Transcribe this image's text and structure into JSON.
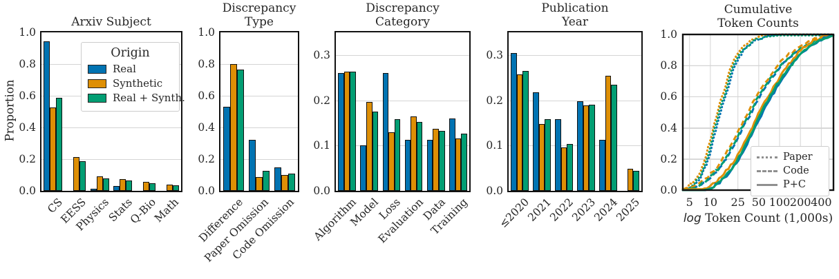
{
  "colors": {
    "series": [
      "#0173b2",
      "#de8f05",
      "#029e73"
    ],
    "edge": "#111111",
    "grid": "#d4d4d4",
    "text": "#262626",
    "legend_line": "#8f8f8f"
  },
  "legend": {
    "title": "Origin",
    "entries": [
      "Real",
      "Synthetic",
      "Real + Synth."
    ]
  },
  "chart_data": [
    {
      "type": "bar",
      "slug": "arxiv-subject",
      "title": "Arxiv Subject",
      "ylabel": "Proportion",
      "ylim": [
        0,
        1.0
      ],
      "yticks": [
        "0.0",
        "0.2",
        "0.4",
        "0.6",
        "0.8",
        "1.0"
      ],
      "categories": [
        "CS",
        "EESS",
        "Physics",
        "Stats",
        "Q-Bio",
        "Math"
      ],
      "series": [
        {
          "name": "Real",
          "values": [
            0.945,
            0,
            0.012,
            0.03,
            0,
            0
          ]
        },
        {
          "name": "Synthetic",
          "values": [
            0.525,
            0.212,
            0.09,
            0.075,
            0.055,
            0.04
          ]
        },
        {
          "name": "Real + Synth.",
          "values": [
            0.585,
            0.188,
            0.08,
            0.066,
            0.049,
            0.035
          ]
        }
      ]
    },
    {
      "type": "bar",
      "slug": "discrepancy-type",
      "title": "Discrepancy\nType",
      "ylim": [
        0,
        1.0
      ],
      "yticks": [
        "0.0",
        "0.2",
        "0.4",
        "0.6",
        "0.8",
        "1.0"
      ],
      "categories": [
        "Difference",
        "Paper Omission",
        "Code Omission"
      ],
      "series": [
        {
          "name": "Real",
          "values": [
            0.53,
            0.32,
            0.15
          ]
        },
        {
          "name": "Synthetic",
          "values": [
            0.8,
            0.085,
            0.1
          ]
        },
        {
          "name": "Real + Synth.",
          "values": [
            0.765,
            0.125,
            0.11
          ]
        }
      ]
    },
    {
      "type": "bar",
      "slug": "discrepancy-category",
      "title": "Discrepancy\nCategory",
      "ylim": [
        0,
        0.35
      ],
      "yticks": [
        "0.0",
        "0.1",
        "0.2",
        "0.3"
      ],
      "categories": [
        "Algorithm",
        "Model",
        "Loss",
        "Evaluation",
        "Data",
        "Training"
      ],
      "series": [
        {
          "name": "Real",
          "values": [
            0.26,
            0.1,
            0.26,
            0.113,
            0.113,
            0.16
          ]
        },
        {
          "name": "Synthetic",
          "values": [
            0.263,
            0.197,
            0.13,
            0.165,
            0.137,
            0.115
          ]
        },
        {
          "name": "Real + Synth.",
          "values": [
            0.263,
            0.175,
            0.158,
            0.152,
            0.132,
            0.127
          ]
        }
      ]
    },
    {
      "type": "bar",
      "slug": "publication-year",
      "title": "Publication\nYear",
      "ylim": [
        0,
        0.35
      ],
      "yticks": [
        "0.0",
        "0.1",
        "0.2",
        "0.3"
      ],
      "categories": [
        "≤2020",
        "2021",
        "2022",
        "2023",
        "2024",
        "2025"
      ],
      "series": [
        {
          "name": "Real",
          "values": [
            0.305,
            0.218,
            0.158,
            0.198,
            0.112,
            0
          ]
        },
        {
          "name": "Synthetic",
          "values": [
            0.257,
            0.148,
            0.096,
            0.189,
            0.254,
            0.049
          ]
        },
        {
          "name": "Real + Synth.",
          "values": [
            0.265,
            0.158,
            0.104,
            0.19,
            0.235,
            0.044
          ]
        }
      ]
    },
    {
      "type": "line",
      "slug": "cumulative-token-counts",
      "title": "Cumulative\nToken Counts",
      "xlabel_italic": "log",
      "xlabel_rest": " Token Count (1,000s)",
      "xscale": "log",
      "xlim": [
        4,
        600
      ],
      "ylim": [
        0,
        1.0
      ],
      "xticks": [
        "5",
        "10",
        "25",
        "50",
        "100",
        "200",
        "400"
      ],
      "yticks": [
        "0.0",
        "0.2",
        "0.4",
        "0.6",
        "0.8",
        "1.0"
      ],
      "legend": {
        "entries": [
          {
            "name": "Paper",
            "style": "dotted"
          },
          {
            "name": "Code",
            "style": "dashed"
          },
          {
            "name": "P+C",
            "style": "solid"
          }
        ]
      },
      "series": [
        {
          "name": "Paper",
          "style": "dotted",
          "x": [
            4,
            5,
            6,
            7,
            8,
            9,
            10,
            12,
            14,
            17,
            20,
            25,
            30,
            40,
            60,
            100,
            600
          ],
          "y": [
            0,
            0.02,
            0.05,
            0.09,
            0.15,
            0.21,
            0.29,
            0.43,
            0.54,
            0.65,
            0.77,
            0.86,
            0.91,
            0.96,
            0.99,
            1.0,
            1.0
          ]
        },
        {
          "name": "Code",
          "style": "dashed",
          "x": [
            4,
            5,
            7,
            9,
            11,
            14,
            17,
            21,
            26,
            32,
            40,
            50,
            63,
            80,
            100,
            130,
            170,
            220,
            300,
            420,
            600
          ],
          "y": [
            0,
            0.01,
            0.035,
            0.07,
            0.11,
            0.16,
            0.22,
            0.29,
            0.37,
            0.45,
            0.53,
            0.61,
            0.68,
            0.74,
            0.8,
            0.85,
            0.89,
            0.925,
            0.955,
            0.98,
            1.0
          ]
        },
        {
          "name": "P+C",
          "style": "solid",
          "x": [
            4,
            8,
            10,
            12,
            15,
            19,
            24,
            30,
            37,
            45,
            55,
            68,
            85,
            105,
            130,
            165,
            210,
            270,
            350,
            450,
            600
          ],
          "y": [
            0,
            0,
            0.015,
            0.04,
            0.08,
            0.13,
            0.19,
            0.27,
            0.35,
            0.43,
            0.51,
            0.58,
            0.66,
            0.72,
            0.78,
            0.84,
            0.89,
            0.93,
            0.96,
            0.98,
            1.0
          ]
        }
      ],
      "origin_variants": [
        {
          "name": "Real",
          "xscale": 1.06,
          "dy": 0.0
        },
        {
          "name": "Synthetic",
          "xscale": 0.96,
          "dy": 0.006
        },
        {
          "name": "Real + Synth.",
          "xscale": 1.0,
          "dy": -0.006
        }
      ]
    }
  ]
}
